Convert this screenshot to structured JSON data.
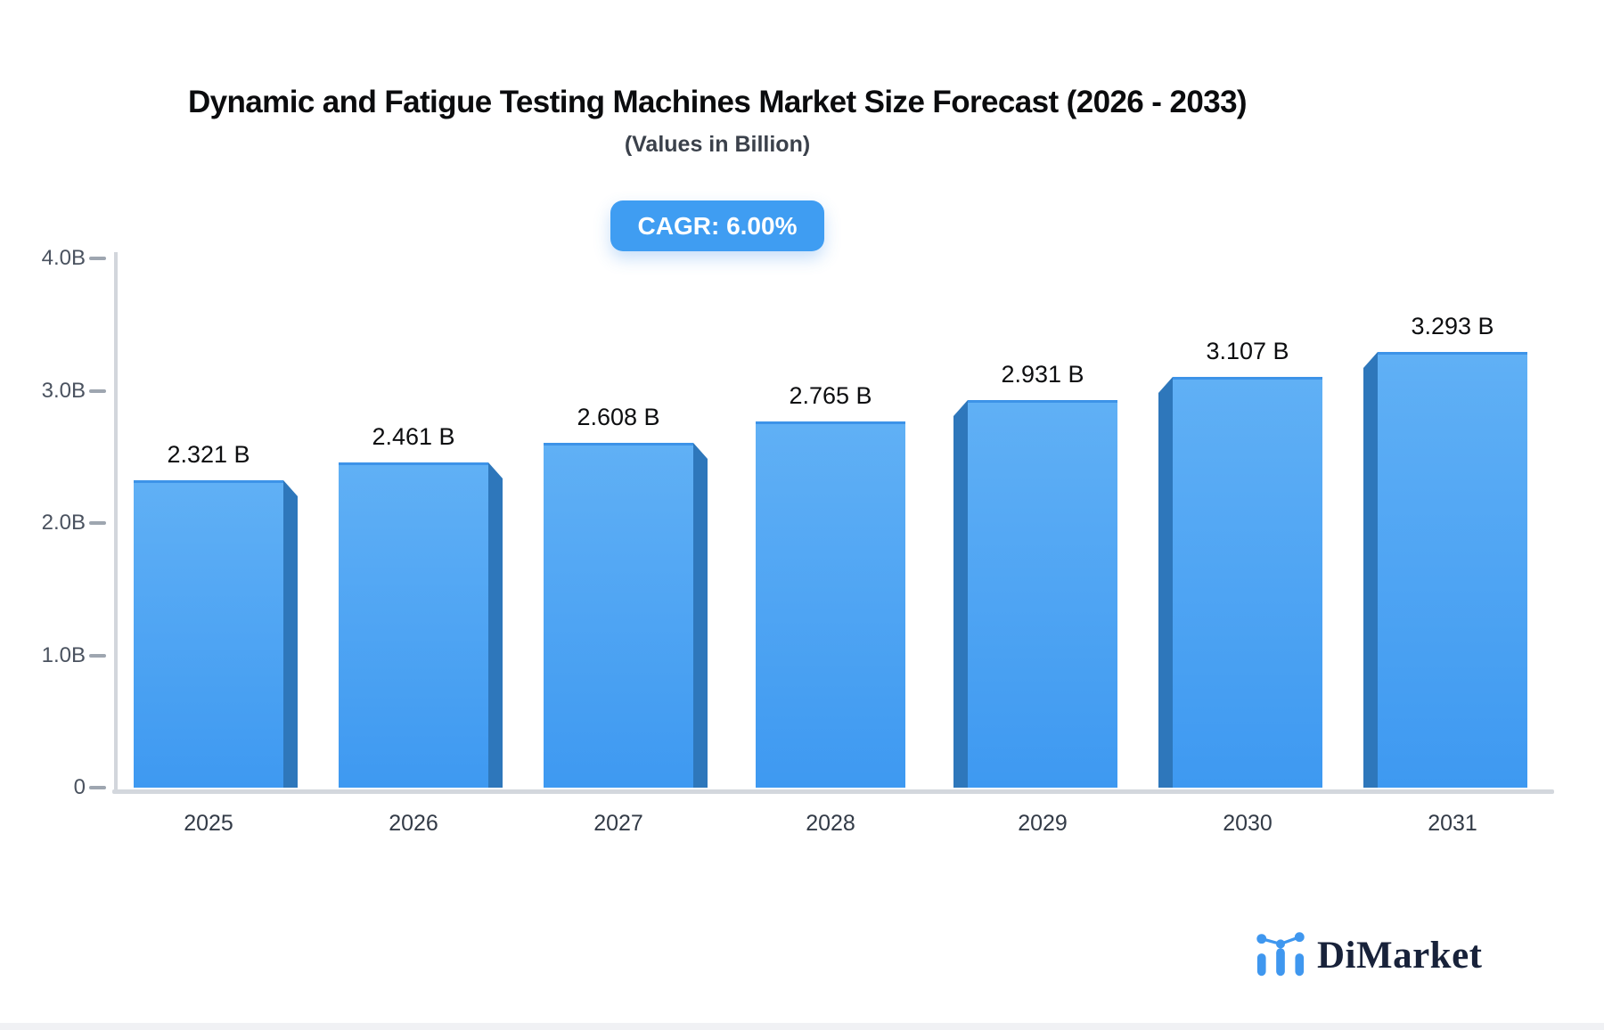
{
  "header": {
    "title": "Dynamic and Fatigue Testing Machines Market Size Forecast (2026 - 2033)",
    "subtitle": "(Values in Billion)",
    "cagr_badge": "CAGR: 6.00%"
  },
  "chart_data": {
    "type": "bar",
    "title": "Dynamic and Fatigue Testing Machines Market Size Forecast (2026 - 2033)",
    "subtitle": "(Values in Billion)",
    "categories": [
      "2025",
      "2026",
      "2027",
      "2028",
      "2029",
      "2030",
      "2031"
    ],
    "values": [
      2.321,
      2.461,
      2.608,
      2.765,
      2.931,
      3.107,
      3.293
    ],
    "value_labels": [
      "2.321 B",
      "2.461 B",
      "2.608 B",
      "2.765 B",
      "2.931 B",
      "3.107 B",
      "3.293 B"
    ],
    "xlabel": "",
    "ylabel": "",
    "ylim": [
      0,
      4
    ],
    "y_ticks": [
      "0",
      "1.0B",
      "2.0B",
      "3.0B",
      "4.0B"
    ],
    "grid": false,
    "legend": null,
    "annotation": "CAGR: 6.00%",
    "bar_style": "3d-beveled",
    "colors": {
      "bar_face_top": "#60b0f5",
      "bar_face_bottom": "#3e99f1",
      "bar_top_edge": "#3d93e8",
      "bar_side": "#2e77bb",
      "badge_background": "#3f9df2",
      "axis_line": "#d2d6dc",
      "tick_text": "#4a525f",
      "label_text": "#0d0e10"
    }
  },
  "footer": {
    "logo_text": "DiMarket",
    "logo_icon": "mini-bar-chart-with-trend-dots",
    "logo_icon_color": "#3f97ef",
    "logo_text_color": "#18223a"
  }
}
